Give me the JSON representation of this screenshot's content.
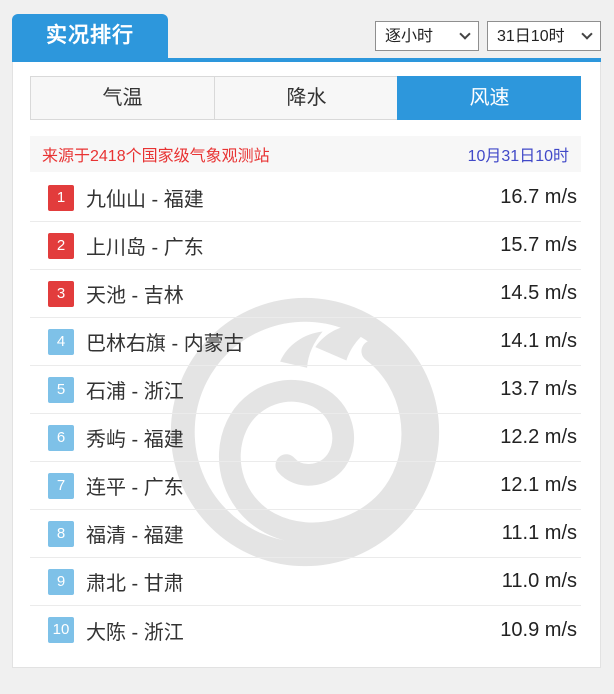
{
  "colors": {
    "accent": "#2d97dc",
    "page_bg": "#f0f0f0",
    "red_badge": "#e23c3c",
    "blue_badge": "#7ec1e8",
    "source_red": "#e83333",
    "date_blue": "#4149c8"
  },
  "header": {
    "title": "实况排行",
    "interval_select": {
      "value": "逐小时"
    },
    "time_select": {
      "value": "31日10时"
    }
  },
  "tabs": [
    {
      "key": "temperature",
      "label": "气温",
      "active": false
    },
    {
      "key": "precipitation",
      "label": "降水",
      "active": false
    },
    {
      "key": "windspeed",
      "label": "风速",
      "active": true
    }
  ],
  "source_bar": {
    "source": "来源于2418个国家级气象观测站",
    "datetime": "10月31日10时"
  },
  "ranking": {
    "unit": "m/s",
    "rows": [
      {
        "rank": 1,
        "name": "九仙山 - 福建",
        "value": "16.7 m/s"
      },
      {
        "rank": 2,
        "name": "上川岛 - 广东",
        "value": "15.7 m/s"
      },
      {
        "rank": 3,
        "name": "天池 - 吉林",
        "value": "14.5 m/s"
      },
      {
        "rank": 4,
        "name": "巴林右旗 - 内蒙古",
        "value": "14.1 m/s"
      },
      {
        "rank": 5,
        "name": "石浦 - 浙江",
        "value": "13.7 m/s"
      },
      {
        "rank": 6,
        "name": "秀屿 - 福建",
        "value": "12.2 m/s"
      },
      {
        "rank": 7,
        "name": "连平 - 广东",
        "value": "12.1 m/s"
      },
      {
        "rank": 8,
        "name": "福清 - 福建",
        "value": "11.1 m/s"
      },
      {
        "rank": 9,
        "name": "肃北 - 甘肃",
        "value": "11.0 m/s"
      },
      {
        "rank": 10,
        "name": "大陈 - 浙江",
        "value": "10.9 m/s"
      }
    ]
  }
}
